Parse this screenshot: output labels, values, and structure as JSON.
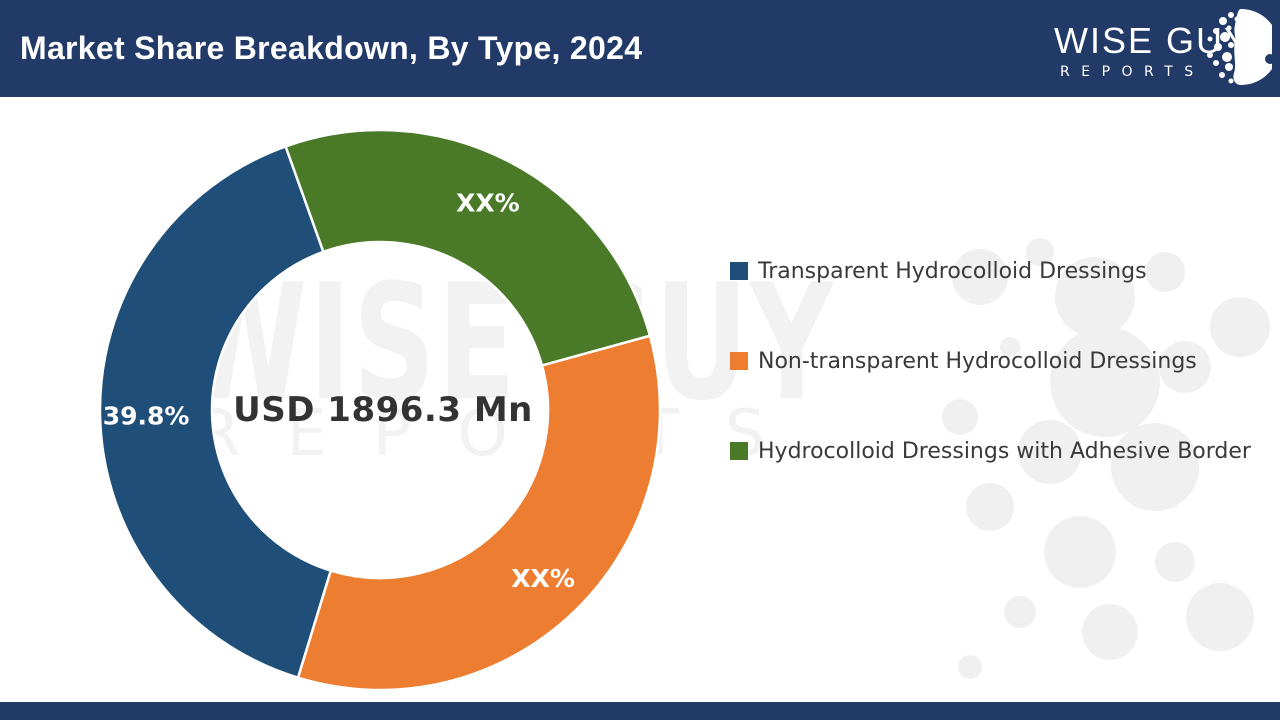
{
  "header": {
    "title": "Market Share Breakdown, By Type, 2024",
    "logo_line1": "WISE GUY",
    "logo_line2": "REPORTS",
    "bg_color": "#223a68"
  },
  "chart_data": {
    "type": "pie",
    "subtype": "donut",
    "title": "Market Share Breakdown, By Type, 2024",
    "center_label": "USD 1896.3 Mn",
    "start_angle_deg": 109.7,
    "direction": "counterclockwise",
    "inner_radius_ratio": 0.6,
    "legend_position": "right",
    "segments": [
      {
        "label": "Transparent Hydrocolloid Dressings",
        "display_pct": "39.8%",
        "value": 39.8,
        "color": "#1f4e79"
      },
      {
        "label": "Non-transparent Hydrocolloid Dressings",
        "display_pct": "XX%",
        "value": 34.0,
        "color": "#ed7d31"
      },
      {
        "label": "Hydrocolloid Dressings with Adhesive Border",
        "display_pct": "XX%",
        "value": 26.2,
        "color": "#4a7a28"
      }
    ]
  },
  "watermark": {
    "line1": "WISE GUY",
    "line2": "REPORTS"
  },
  "footer": {
    "bg_color": "#223a68"
  }
}
